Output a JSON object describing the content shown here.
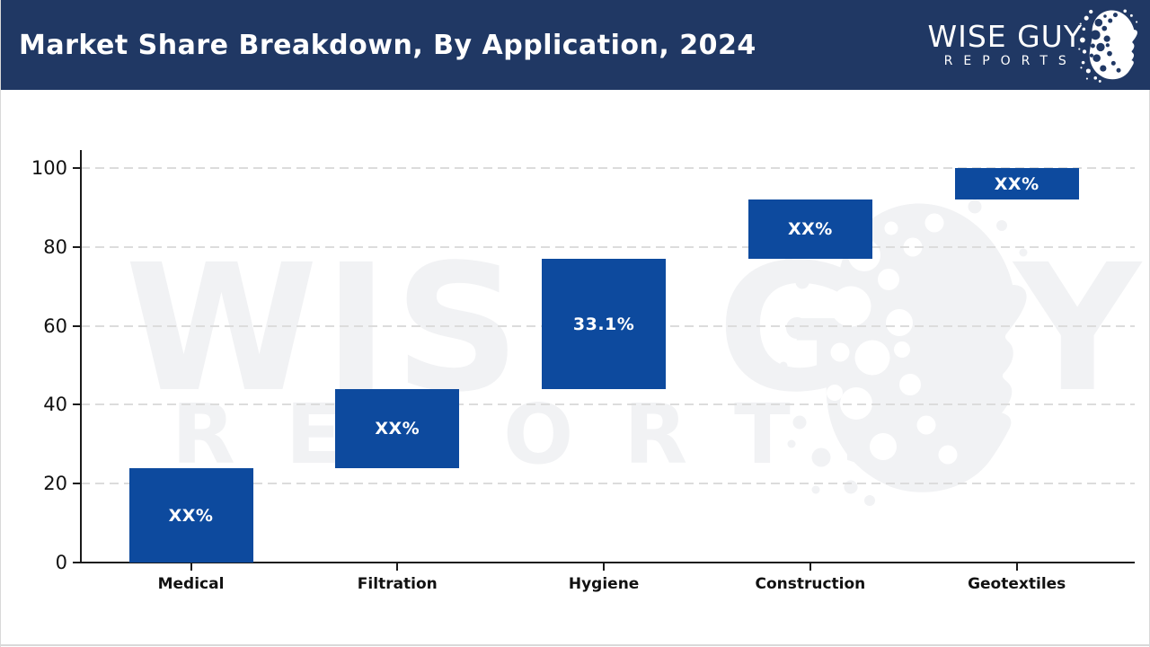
{
  "header": {
    "title": "Market Share Breakdown, By Application, 2024",
    "logo": {
      "brand_top": "WISE GUY",
      "brand_bottom": "REPORTS"
    }
  },
  "watermark": {
    "brand_top": "WISE GUY",
    "brand_bottom": "REPORTS"
  },
  "colors": {
    "header_bg": "#203864",
    "bar_fill": "#0d4a9e",
    "bar_label": "#ffffff",
    "grid_line": "#dcdcdc",
    "axis_line": "#1a1a1a",
    "tick_label": "#111111",
    "watermark": "#f1f2f4"
  },
  "chart_data": {
    "type": "bar",
    "subtype": "waterfall",
    "title": "Market Share Breakdown, By Application, 2024",
    "xlabel": "",
    "ylabel": "",
    "categories": [
      "Medical",
      "Filtration",
      "Hygiene",
      "Construction",
      "Geotextiles"
    ],
    "segments": [
      {
        "category": "Medical",
        "start": 0,
        "end": 23.9,
        "value": 23.9,
        "label": "XX%"
      },
      {
        "category": "Filtration",
        "start": 23.9,
        "end": 43.9,
        "value": 20.0,
        "label": "XX%"
      },
      {
        "category": "Hygiene",
        "start": 43.9,
        "end": 77.0,
        "value": 33.1,
        "label": "33.1%"
      },
      {
        "category": "Construction",
        "start": 77.0,
        "end": 92.0,
        "value": 15.0,
        "label": "XX%"
      },
      {
        "category": "Geotextiles",
        "start": 92.0,
        "end": 100.0,
        "value": 8.0,
        "label": "XX%"
      }
    ],
    "yticks": [
      0,
      20,
      40,
      60,
      80,
      100
    ],
    "ylim": [
      0,
      104
    ],
    "bar_width_fraction": 0.6,
    "grid": "horizontal-dashed",
    "legend": "none"
  }
}
